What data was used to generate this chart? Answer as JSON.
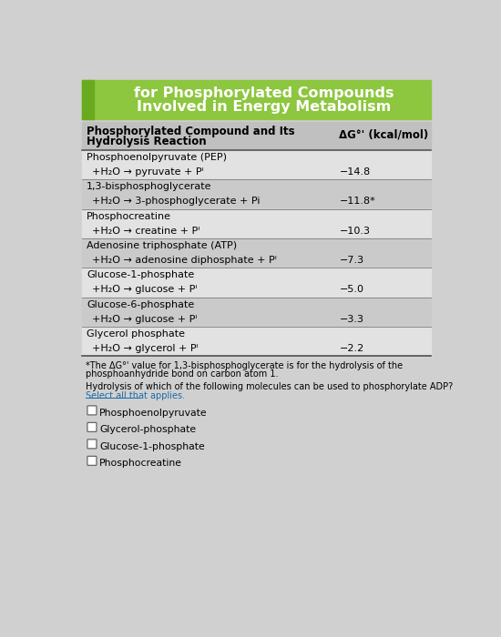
{
  "title_line1": "for Phosphorylated Compounds",
  "title_line2": "Involved in Energy Metabolism",
  "title_bg_color": "#8dc63f",
  "title_text_color": "#ffffff",
  "bg_color": "#d0d0d0",
  "rows": [
    {
      "compound": "Phosphoenolpyruvate (PEP)",
      "reaction": null,
      "value": null
    },
    {
      "compound": null,
      "reaction": "+H₂O → pyruvate + Pᴵ",
      "value": "−14.8"
    },
    {
      "compound": "1,3-bisphosphoglycerate",
      "reaction": null,
      "value": null
    },
    {
      "compound": null,
      "reaction": "+H₂O → 3-phosphoglycerate + Pi",
      "value": "−11.8*"
    },
    {
      "compound": "Phosphocreatine",
      "reaction": null,
      "value": null
    },
    {
      "compound": null,
      "reaction": "+H₂O → creatine + Pᴵ",
      "value": "−10.3"
    },
    {
      "compound": "Adenosine triphosphate (ATP)",
      "reaction": null,
      "value": null
    },
    {
      "compound": null,
      "reaction": "+H₂O → adenosine diphosphate + Pᴵ",
      "value": "−7.3"
    },
    {
      "compound": "Glucose-1-phosphate",
      "reaction": null,
      "value": null
    },
    {
      "compound": null,
      "reaction": "+H₂O → glucose + Pᴵ",
      "value": "−5.0"
    },
    {
      "compound": "Glucose-6-phosphate",
      "reaction": null,
      "value": null
    },
    {
      "compound": null,
      "reaction": "+H₂O → glucose + Pᴵ",
      "value": "−3.3"
    },
    {
      "compound": "Glycerol phosphate",
      "reaction": null,
      "value": null
    },
    {
      "compound": null,
      "reaction": "+H₂O → glycerol + Pᴵ",
      "value": "−2.2"
    }
  ],
  "footnote_line1": "*The ΔG°' value for 1,3-bisphosphoglycerate is for the hydrolysis of the",
  "footnote_line2": "phosphoanhydride bond on carbon atom 1.",
  "question_line1": "Hydrolysis of which of the following molecules can be used to phosphorylate ADP?",
  "question_line2": "Select all that applies.",
  "choices": [
    "Phosphoenolpyruvate",
    "Glycerol-phosphate",
    "Glucose-1-phosphate",
    "Phosphocreatine"
  ],
  "alt_colors": [
    "#e2e2e2",
    "#cacaca"
  ],
  "header_bg": "#c0c0c0",
  "link_color": "#1a6aaa"
}
